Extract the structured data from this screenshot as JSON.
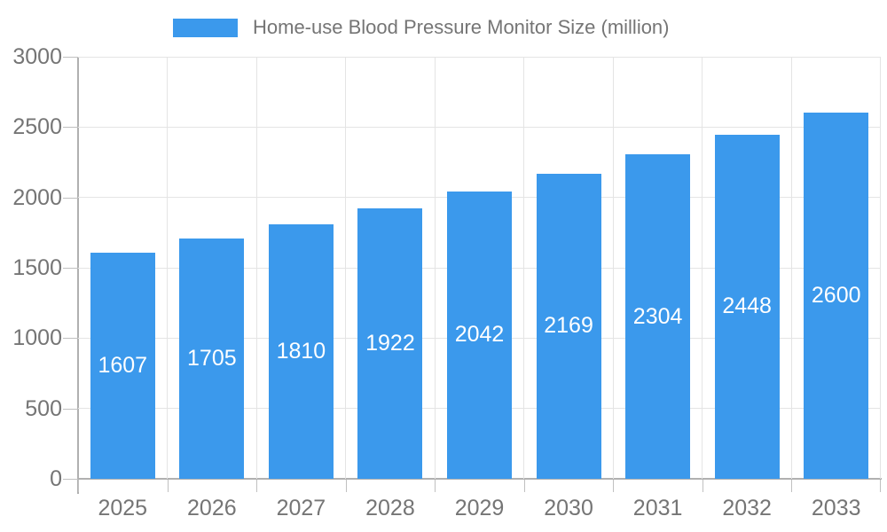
{
  "legend": {
    "label": "Home-use Blood Pressure Monitor Size (million)"
  },
  "colors": {
    "bar": "#3b99ec",
    "bar_label": "#ffffff",
    "grid": "#e4e4e4",
    "axis": "#b0b0b0",
    "tick": "#c0c0c0",
    "text": "#757575",
    "background": "#ffffff"
  },
  "chart_data": {
    "type": "bar",
    "title": "Home-use Blood Pressure Monitor Size (million)",
    "series_name": "Home-use Blood Pressure Monitor Size (million)",
    "categories": [
      "2025",
      "2026",
      "2027",
      "2028",
      "2029",
      "2030",
      "2031",
      "2032",
      "2033"
    ],
    "values": [
      1607,
      1705,
      1810,
      1922,
      2042,
      2169,
      2304,
      2448,
      2600
    ],
    "xlabel": "",
    "ylabel": "",
    "ylim": [
      0,
      3000
    ],
    "yticks": [
      0,
      500,
      1000,
      1500,
      2000,
      2500,
      3000
    ],
    "grid": true,
    "legend_position": "top",
    "bar_labels": "inside-center"
  }
}
